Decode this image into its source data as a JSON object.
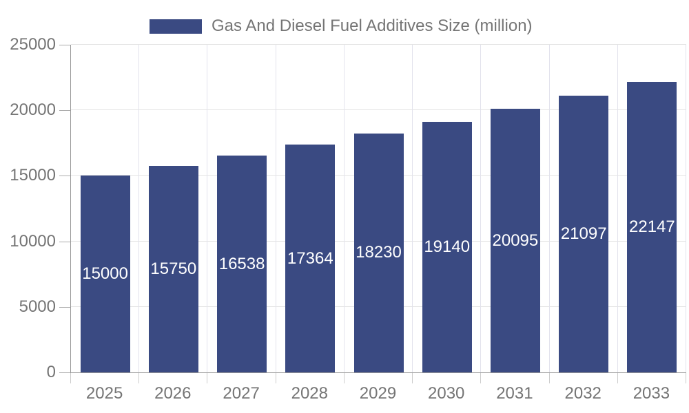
{
  "legend": {
    "label": "Gas And Diesel Fuel Additives Size (million)"
  },
  "chart_data": {
    "type": "bar",
    "title": "Gas And Diesel Fuel Additives Size (million)",
    "categories": [
      "2025",
      "2026",
      "2027",
      "2028",
      "2029",
      "2030",
      "2031",
      "2032",
      "2033"
    ],
    "values": [
      15000,
      15750,
      16538,
      17364,
      18230,
      19140,
      20095,
      21097,
      22147
    ],
    "xlabel": "",
    "ylabel": "",
    "ylim": [
      0,
      25000
    ],
    "y_ticks": [
      0,
      5000,
      10000,
      15000,
      20000,
      25000
    ],
    "grid": true,
    "legend_position": "top",
    "colors": {
      "bar": "#3A4A82",
      "bar_label_text": "#ffffff",
      "axis_line": "#999999",
      "tick_text": "#757575",
      "legend_text": "#757575",
      "h_gridline": "#e3e3e3",
      "v_gridline": "#e2e2ec"
    }
  }
}
